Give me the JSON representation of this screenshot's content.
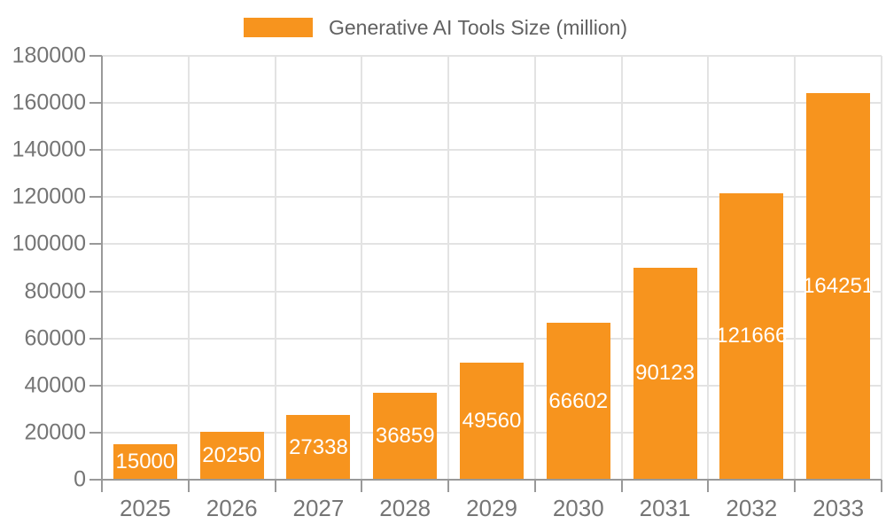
{
  "legend": {
    "label": "Generative AI Tools Size (million)"
  },
  "chart_data": {
    "type": "bar",
    "title": "Generative AI Tools Size (million)",
    "categories": [
      "2025",
      "2026",
      "2027",
      "2028",
      "2029",
      "2030",
      "2031",
      "2032",
      "2033"
    ],
    "series": [
      {
        "name": "Generative AI Tools Size (million)",
        "values": [
          15000,
          20250,
          27338,
          36859,
          49560,
          66602,
          90123,
          121666,
          164251
        ]
      }
    ],
    "values": [
      15000,
      20250,
      27338,
      36859,
      49560,
      66602,
      90123,
      121666,
      164251
    ],
    "value_labels": [
      "15000",
      "20250",
      "27338",
      "36859",
      "49560",
      "66602",
      "90123",
      "121666",
      "164251"
    ],
    "xlabel": "",
    "ylabel": "",
    "ylim": [
      0,
      180000
    ],
    "ytick_step": 20000,
    "ytick_labels": [
      "0",
      "20000",
      "40000",
      "60000",
      "80000",
      "100000",
      "120000",
      "140000",
      "160000",
      "180000"
    ],
    "grid": "horizontal and vertical gridlines on",
    "legend_position": "top-center",
    "colors": {
      "bar": "#F7941E",
      "grid": "#E3E3E3",
      "axis": "#999999",
      "axis_label": "#757575",
      "value_label": "#FFFFFF",
      "legend_text": "#616161"
    }
  }
}
